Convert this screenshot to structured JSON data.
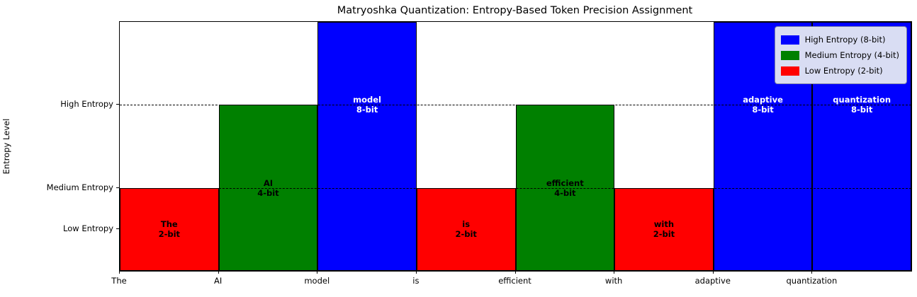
{
  "title": "Matryoshka Quantization: Entropy-Based Token Precision Assignment",
  "chart_data": {
    "type": "bar",
    "title": "Matryoshka Quantization: Entropy-Based Token Precision Assignment",
    "xlabel": "",
    "ylabel": "Entropy Level",
    "ylim": [
      0,
      3
    ],
    "grid": false,
    "legend_position": "upper right",
    "categories": [
      "The",
      "AI",
      "model",
      "is",
      "efficient",
      "with",
      "adaptive",
      "quantization"
    ],
    "values": [
      1,
      2,
      3,
      1,
      2,
      1,
      3,
      3
    ],
    "tokens": [
      {
        "word": "The",
        "entropy": "low",
        "bits": "2-bit",
        "value": 1,
        "color": "#ff0000",
        "label_line1": "The",
        "label_line2": "2-bit",
        "label_y": 0.5,
        "label_color": "#000000"
      },
      {
        "word": "AI",
        "entropy": "medium",
        "bits": "4-bit",
        "value": 2,
        "color": "#008000",
        "label_line1": "AI",
        "label_line2": "4-bit",
        "label_y": 1.0,
        "label_color": "#000000"
      },
      {
        "word": "model",
        "entropy": "high",
        "bits": "8-bit",
        "value": 3,
        "color": "#0000ff",
        "label_line1": "model",
        "label_line2": "8-bit",
        "label_y": 2.0,
        "label_color": "#ffffff"
      },
      {
        "word": "is",
        "entropy": "low",
        "bits": "2-bit",
        "value": 1,
        "color": "#ff0000",
        "label_line1": "is",
        "label_line2": "2-bit",
        "label_y": 0.5,
        "label_color": "#000000"
      },
      {
        "word": "efficient",
        "entropy": "medium",
        "bits": "4-bit",
        "value": 2,
        "color": "#008000",
        "label_line1": "efficient",
        "label_line2": "4-bit",
        "label_y": 1.0,
        "label_color": "#000000"
      },
      {
        "word": "with",
        "entropy": "low",
        "bits": "2-bit",
        "value": 1,
        "color": "#ff0000",
        "label_line1": "with",
        "label_line2": "2-bit",
        "label_y": 0.5,
        "label_color": "#000000"
      },
      {
        "word": "adaptive",
        "entropy": "high",
        "bits": "8-bit",
        "value": 3,
        "color": "#0000ff",
        "label_line1": "adaptive",
        "label_line2": "8-bit",
        "label_y": 2.0,
        "label_color": "#ffffff"
      },
      {
        "word": "quantization",
        "entropy": "high",
        "bits": "8-bit",
        "value": 3,
        "color": "#0000ff",
        "label_line1": "quantization",
        "label_line2": "8-bit",
        "label_y": 2.0,
        "label_color": "#ffffff"
      }
    ],
    "yticks": [
      {
        "label": "Low Entropy",
        "value": 0.5
      },
      {
        "label": "Medium Entropy",
        "value": 1.0
      },
      {
        "label": "High Entropy",
        "value": 2.0
      }
    ],
    "hlines": [
      1.0,
      2.0
    ],
    "legend": [
      {
        "label": "High Entropy (8-bit)",
        "color": "#0000ff"
      },
      {
        "label": "Medium Entropy (4-bit)",
        "color": "#008000"
      },
      {
        "label": "Low Entropy (2-bit)",
        "color": "#ff0000"
      }
    ]
  }
}
